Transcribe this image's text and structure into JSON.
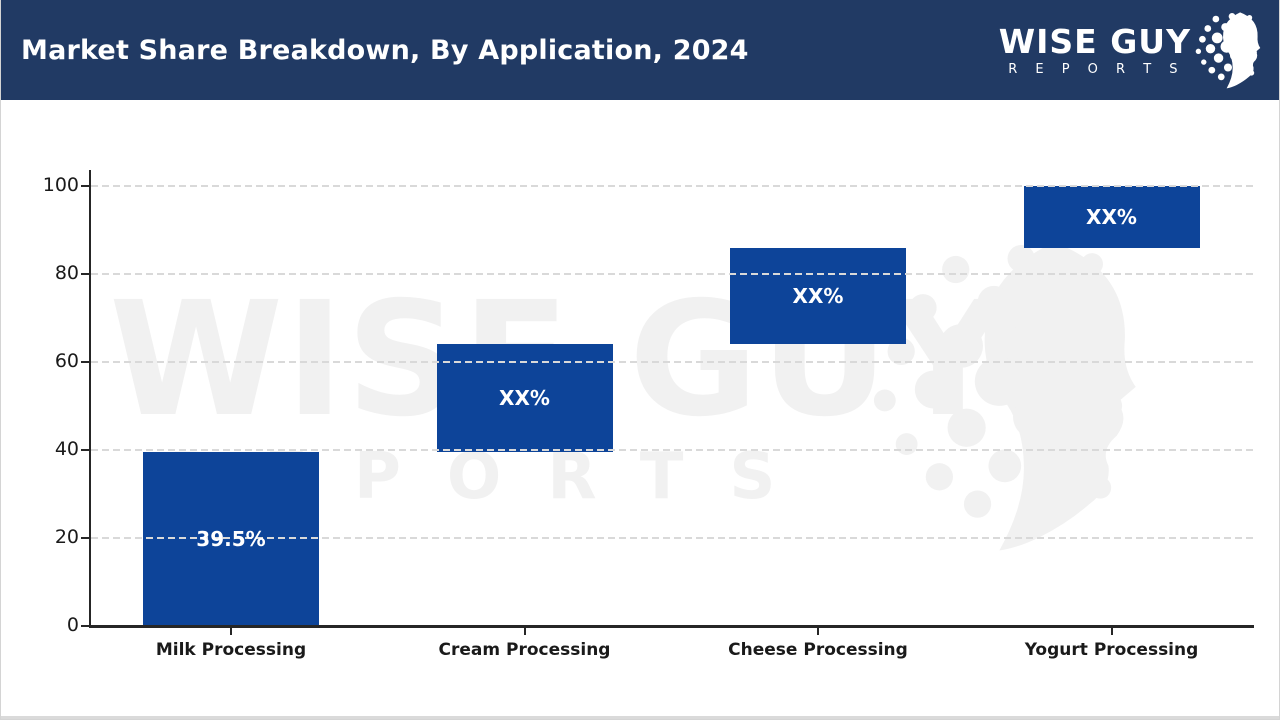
{
  "header": {
    "title": "Market Share Breakdown, By Application, 2024",
    "logo": {
      "line1": "WISE GUY",
      "line2": "R E P O R T S"
    }
  },
  "watermark": {
    "line1": "WISE GUY",
    "line2": "REPORTS"
  },
  "chart_data": {
    "type": "bar",
    "subtype": "waterfall",
    "title": "Market Share Breakdown, By Application, 2024",
    "categories": [
      "Milk Processing",
      "Cream Processing",
      "Cheese Processing",
      "Yogurt Processing"
    ],
    "segments": [
      {
        "category": "Milk Processing",
        "start": 0,
        "end": 39.5,
        "label": "39.5%"
      },
      {
        "category": "Cream Processing",
        "start": 39.5,
        "end": 64,
        "label": "XX%"
      },
      {
        "category": "Cheese Processing",
        "start": 64,
        "end": 86,
        "label": "XX%"
      },
      {
        "category": "Yogurt Processing",
        "start": 86,
        "end": 100,
        "label": "XX%"
      }
    ],
    "ylabel": "",
    "xlabel": "",
    "yticks": [
      0,
      20,
      40,
      60,
      80,
      100
    ],
    "ylim": [
      0,
      104
    ],
    "grid": "horizontal dashed, drawn above bars",
    "legend": "none"
  },
  "colors": {
    "header_bg": "#213a64",
    "bar": "#0d4499",
    "bar_label": "#ffffff",
    "gridline": "#d9d9d9",
    "axis": "#262626",
    "watermark": "#f1f1f1"
  }
}
